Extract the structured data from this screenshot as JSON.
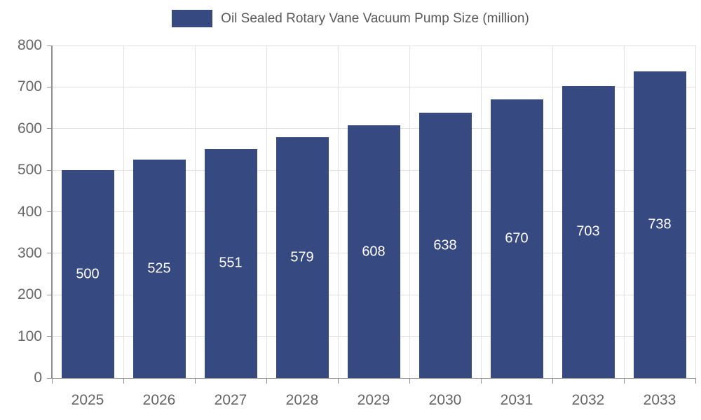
{
  "chart_data": {
    "type": "bar",
    "title": "Oil Sealed Rotary Vane Vacuum Pump Size (million)",
    "categories": [
      "2025",
      "2026",
      "2027",
      "2028",
      "2029",
      "2030",
      "2031",
      "2032",
      "2033"
    ],
    "values": [
      500,
      525,
      551,
      579,
      608,
      638,
      670,
      703,
      738
    ],
    "xlabel": "",
    "ylabel": "",
    "ylim": [
      0,
      800
    ],
    "y_tick_interval": 100,
    "y_tick_labels": [
      "0",
      "100",
      "200",
      "300",
      "400",
      "500",
      "600",
      "700",
      "800"
    ],
    "grid": "both",
    "legend_position": "top-center",
    "value_labels": "inside-center",
    "colors": {
      "bar": "#364a81",
      "grid": "#e2e2e2",
      "axis": "#909090",
      "tick_label": "#666666",
      "legend_text": "#595959",
      "value_label": "#ffffff",
      "background": "#ffffff"
    }
  }
}
